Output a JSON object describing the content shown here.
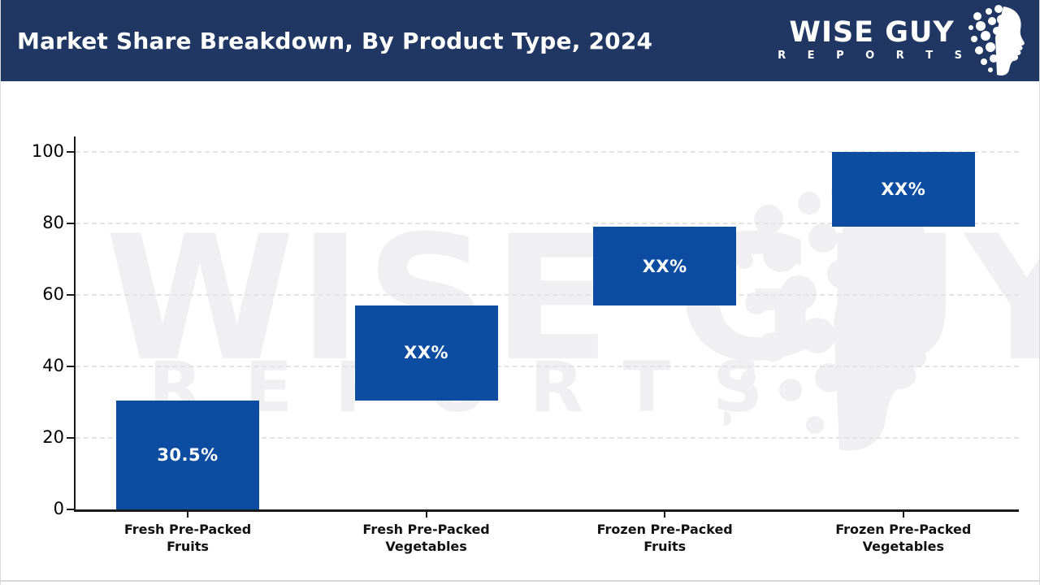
{
  "header": {
    "title": "Market Share Breakdown, By Product Type, 2024",
    "bg_color": "#203763",
    "logo": {
      "line1": "WISE GUY",
      "line2": "R E P O R T S"
    }
  },
  "watermark": {
    "line1": "WISE GUY",
    "line2": "REPORTS"
  },
  "chart_data": {
    "type": "bar",
    "subtype": "waterfall",
    "title": "Market Share Breakdown, By Product Type, 2024",
    "xlabel": "",
    "ylabel": "",
    "categories": [
      "Fresh Pre-Packed Fruits",
      "Fresh Pre-Packed Vegetables",
      "Frozen Pre-Packed Fruits",
      "Frozen Pre-Packed Vegetables"
    ],
    "categories_display": [
      "Fresh Pre-Packed\nFruits",
      "Fresh Pre-Packed\nVegetables",
      "Frozen Pre-Packed\nFruits",
      "Frozen Pre-Packed\nVegetables"
    ],
    "bars": [
      {
        "label": "30.5%",
        "start": 0,
        "end": 30.5
      },
      {
        "label": "XX%",
        "start": 30.5,
        "end": 57
      },
      {
        "label": "XX%",
        "start": 57,
        "end": 79
      },
      {
        "label": "XX%",
        "start": 79,
        "end": 100
      }
    ],
    "yticks": [
      0,
      20,
      40,
      60,
      80,
      100
    ],
    "ylim": [
      0,
      105
    ],
    "bar_color": "#0c4da2",
    "grid": "horizontal-dashed",
    "legend": "none"
  }
}
